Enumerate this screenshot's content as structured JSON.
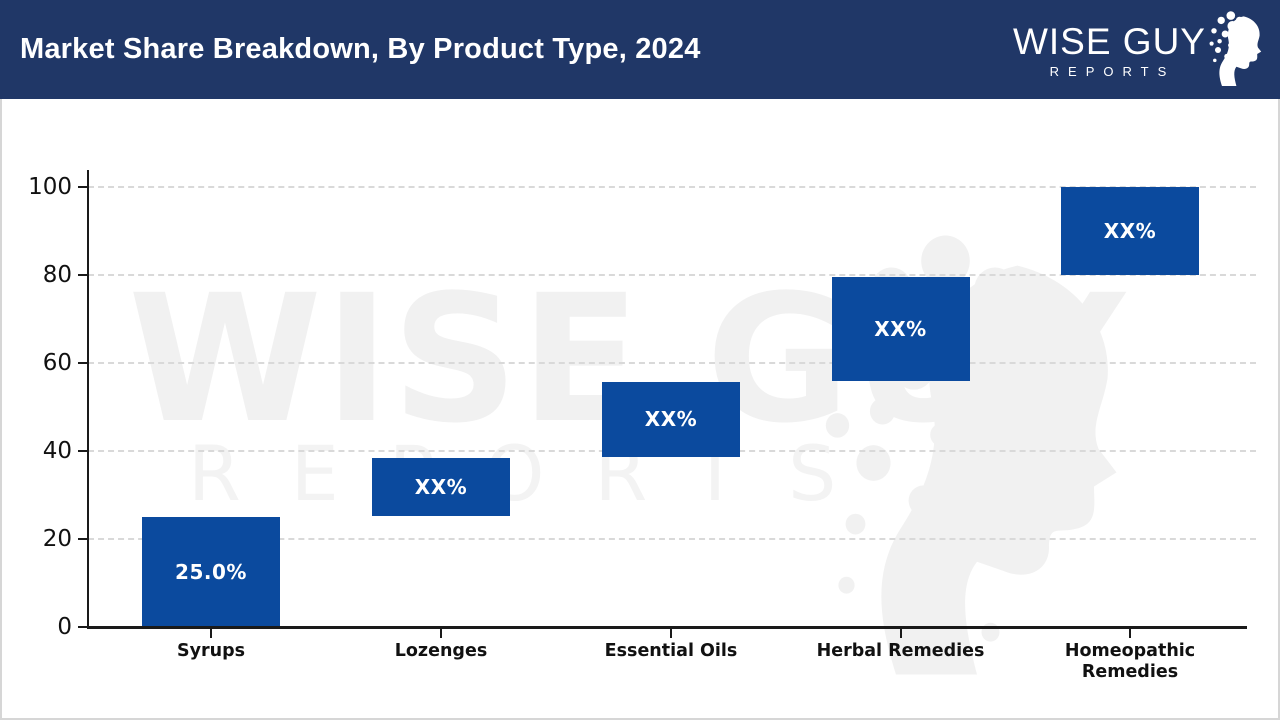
{
  "header": {
    "title": "Market Share Breakdown, By Product Type, 2024",
    "bg_color": "#203767",
    "logo": {
      "line1": "WISE GUY",
      "line2": "REPORTS",
      "face_icon": "dotted-face-profile-icon"
    }
  },
  "watermark": {
    "line1": "WISE GUY",
    "line2": "REPORTS",
    "face_icon": "dotted-face-profile-icon"
  },
  "chart_data": {
    "type": "bar",
    "subtype": "waterfall",
    "title": "Market Share Breakdown, By Product Type, 2024",
    "categories": [
      "Syrups",
      "Lozenges",
      "Essential Oils",
      "Herbal Remedies",
      "Homeopathic Remedies"
    ],
    "segments": [
      {
        "category": "Syrups",
        "start": 0,
        "end": 25,
        "label": "25.0%"
      },
      {
        "category": "Lozenges",
        "start": 25.3,
        "end": 38.5,
        "label": "XX%"
      },
      {
        "category": "Essential Oils",
        "start": 38.7,
        "end": 55.7,
        "label": "XX%"
      },
      {
        "category": "Herbal Remedies",
        "start": 55.9,
        "end": 79.5,
        "label": "XX%"
      },
      {
        "category": "Homeopathic Remedies",
        "start": 80,
        "end": 100,
        "label": "XX%"
      }
    ],
    "xlabel": "",
    "ylabel": "",
    "ylim": [
      0,
      100
    ],
    "yticks": [
      0,
      20,
      40,
      60,
      80,
      100
    ],
    "grid": "horizontal-dashed",
    "legend": "none",
    "bar_color": "#0b4a9e",
    "bar_label_color": "#ffffff",
    "axis_color": "#1a1a1a",
    "gridline_color": "#d9d9d9"
  }
}
